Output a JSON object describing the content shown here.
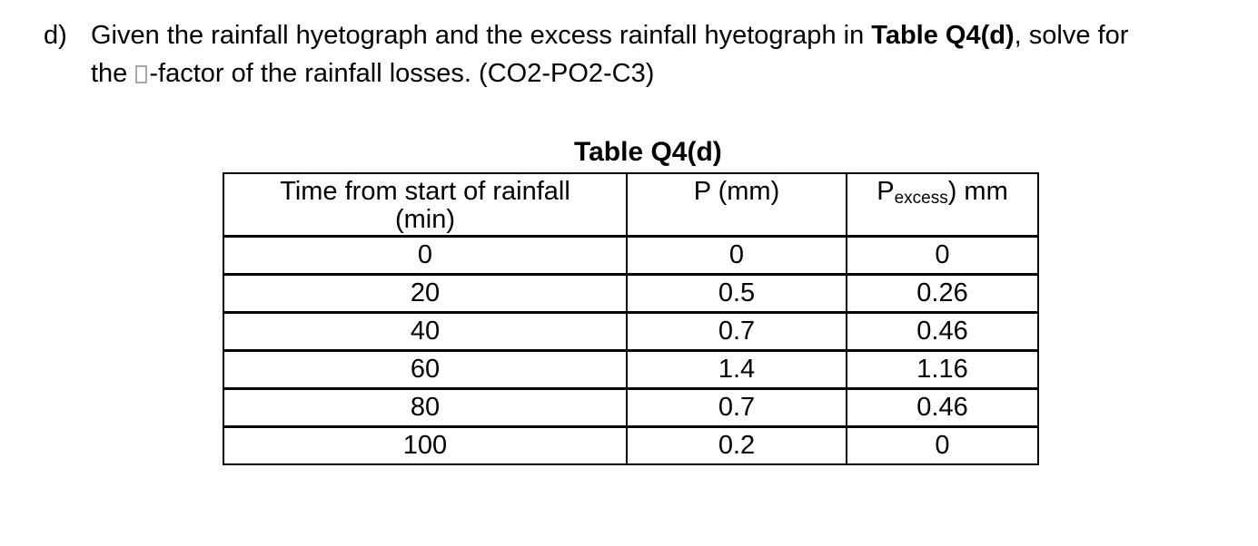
{
  "question": {
    "label": "d)",
    "line1": {
      "pre_bold": "Given the rainfall hyetograph and the excess rainfall hyetograph in ",
      "bold": "Table Q4(d)",
      "post_bold": ", solve for"
    },
    "line2": {
      "pre_box": "the ",
      "post_box": "-factor of the rainfall losses. (CO2-PO2-C3)"
    }
  },
  "table": {
    "title": "Table Q4(d)",
    "header": {
      "col1_line1": "Time from start of rainfall",
      "col1_line2": "(min)",
      "col2": "P (mm)",
      "col3_base": "P",
      "col3_sub": "excess",
      "col3_suffix": ") mm"
    },
    "rows": [
      {
        "time": "0",
        "p": "0",
        "p_excess": "0"
      },
      {
        "time": "20",
        "p": "0.5",
        "p_excess": "0.26"
      },
      {
        "time": "40",
        "p": "0.7",
        "p_excess": "0.46"
      },
      {
        "time": "60",
        "p": "1.4",
        "p_excess": "1.16"
      },
      {
        "time": "80",
        "p": "0.7",
        "p_excess": "0.46"
      },
      {
        "time": "100",
        "p": "0.2",
        "p_excess": "0"
      }
    ]
  },
  "colors": {
    "text": "#000000",
    "table_border": "#000000",
    "background": "#ffffff",
    "missing_glyph_border": "#a8a8a8"
  }
}
